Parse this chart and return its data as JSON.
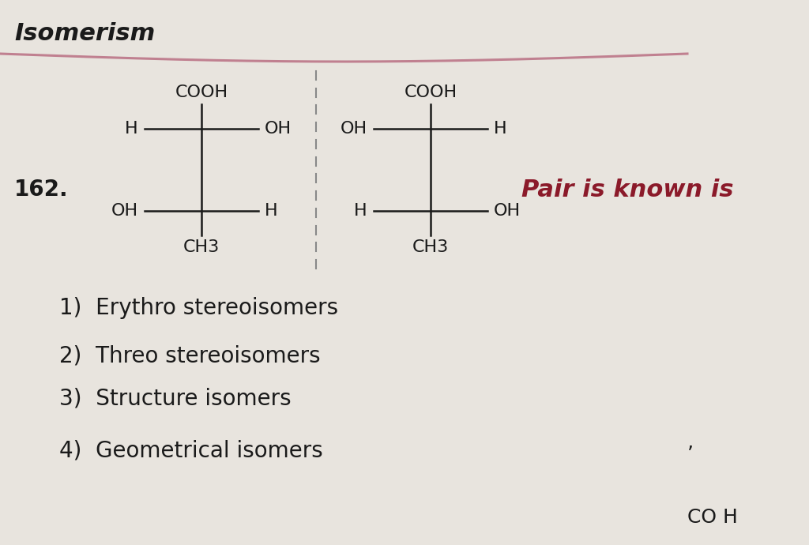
{
  "title": "Isomerism",
  "question_number": "162.",
  "pair_text": "Pair is known is",
  "options": [
    "1)  Erythro stereoisomers",
    "2)  Threo stereoisomers",
    "3)  Structure isomers",
    "4)  Geometrical isomers"
  ],
  "bg_color": "#e8e4de",
  "title_color": "#1a1a1a",
  "separator_color": "#c08090",
  "text_color": "#1a1a1a",
  "molecule_color": "#1a1a1a",
  "pair_text_color": "#8B1a2a",
  "dash_color": "#888888",
  "molecule1": {
    "top_label": "COOH",
    "left1": "H",
    "right1": "OH",
    "left2": "OH",
    "right2": "H",
    "bottom_label": "CH3"
  },
  "molecule2": {
    "top_label": "COOH",
    "left1": "OH",
    "right1": "H",
    "left2": "H",
    "right2": "OH",
    "bottom_label": "CH3"
  },
  "option_fontsize": 20,
  "mol_fontsize": 16,
  "title_fontsize": 22
}
